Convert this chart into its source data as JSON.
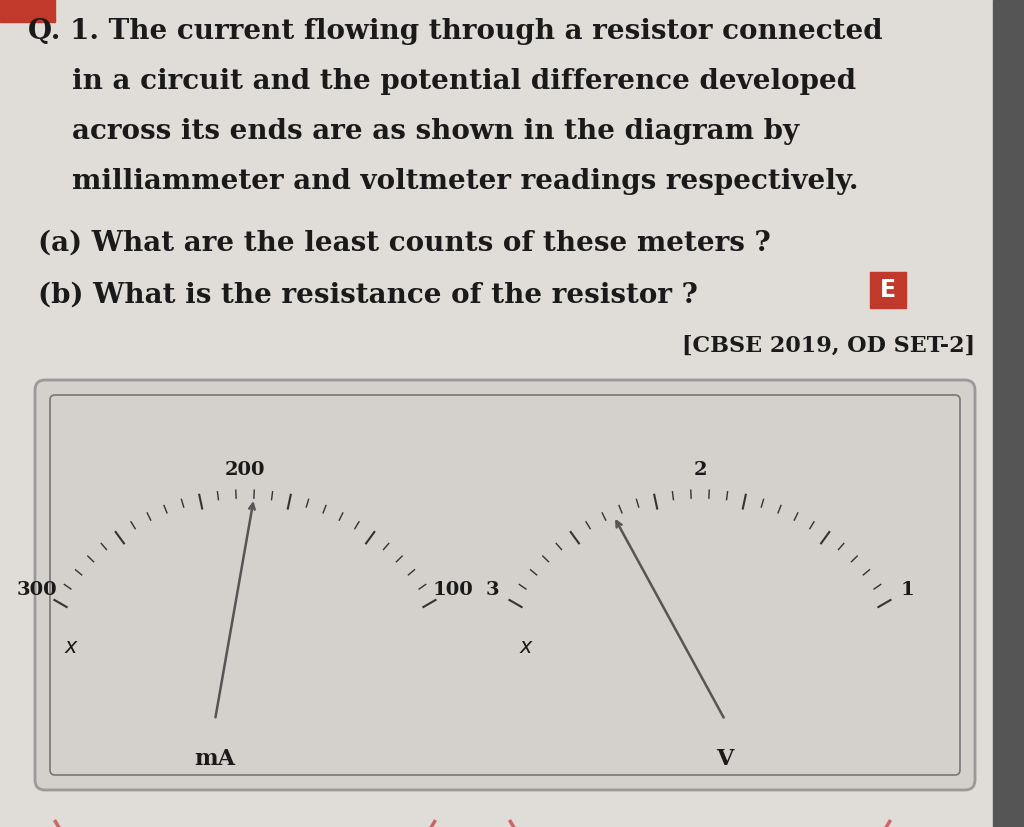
{
  "bg_color": "#e0dcd8",
  "text_color": "#1a1a1a",
  "title_line1": "Q. 1. The current flowing through a resistor connected",
  "title_line2": "in a circuit and the potential difference developed",
  "title_line3": "across its ends are as shown in the diagram by",
  "title_line4": "milliammeter and voltmeter readings respectively.",
  "question_a": "(a) What are the least counts of these meters ?",
  "question_b": "(b) What is the resistance of the resistor ?",
  "cbse_ref": "[CBSE 2019, OD SET-2]",
  "meter1_unit": "mA",
  "meter2_unit": "V",
  "top_bar_color": "#c0392b",
  "right_strip_color": "#555555",
  "box_e_color": "#c0392b",
  "box_e_text": "E",
  "meter_bg": "#d4d0cc",
  "meter_edge": "#888888",
  "arc_color": "#cc6666",
  "tick_color": "#333333",
  "needle_color": "#555555"
}
